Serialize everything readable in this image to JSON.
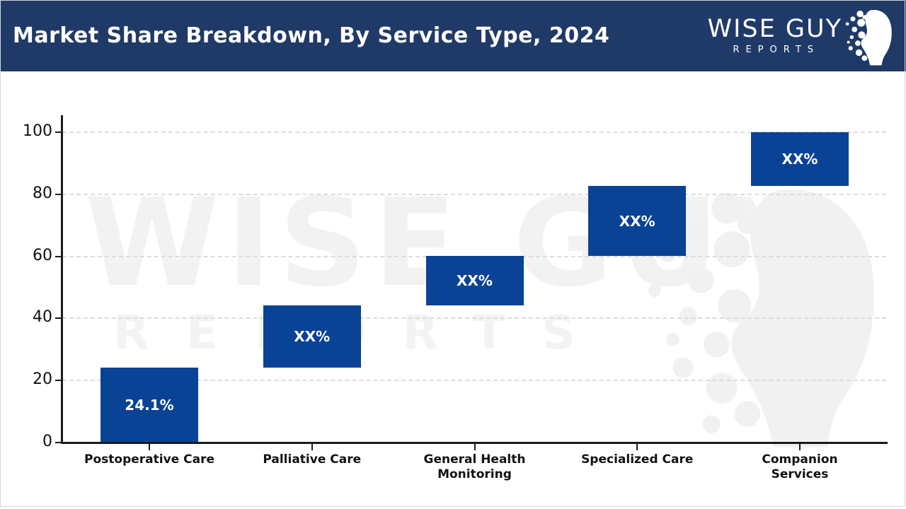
{
  "header": {
    "title": "Market Share Breakdown, By Service Type, 2024",
    "logo": {
      "name": "WISE GUY",
      "tagline": "REPORTS"
    }
  },
  "watermark": {
    "line1": "WISE GUY",
    "line2": "REPORTS"
  },
  "chart_data": {
    "type": "bar",
    "subtype": "waterfall",
    "title": "Market Share Breakdown, By Service Type, 2024",
    "categories": [
      "Postoperative Care",
      "Palliative Care",
      "General Health Monitoring",
      "Specialized Care",
      "Companion Services"
    ],
    "segments": [
      {
        "category": "Postoperative Care",
        "start": 0,
        "end": 24.1,
        "value": 24.1,
        "label": "24.1%"
      },
      {
        "category": "Palliative Care",
        "start": 24.1,
        "end": 44.2,
        "value": 20.1,
        "label": "XX%"
      },
      {
        "category": "General Health Monitoring",
        "start": 44.2,
        "end": 60.1,
        "value": 15.9,
        "label": "XX%"
      },
      {
        "category": "Specialized Care",
        "start": 60.1,
        "end": 82.7,
        "value": 22.6,
        "label": "XX%"
      },
      {
        "category": "Companion Services",
        "start": 82.7,
        "end": 100,
        "value": 17.3,
        "label": "XX%"
      }
    ],
    "y_ticks": [
      0,
      20,
      40,
      60,
      80,
      100
    ],
    "ylim": [
      0,
      105.5
    ],
    "xlabel": "",
    "ylabel": "",
    "grid": "horizontal-dashed",
    "legend": "none",
    "bar_color": "#0a4296",
    "bar_label_color": "#ffffff",
    "axis_color": "#1a1a1a",
    "gridline_color": "#dcdcdc",
    "header_color": "#203a68",
    "watermark_color": "#f2f2f2"
  }
}
